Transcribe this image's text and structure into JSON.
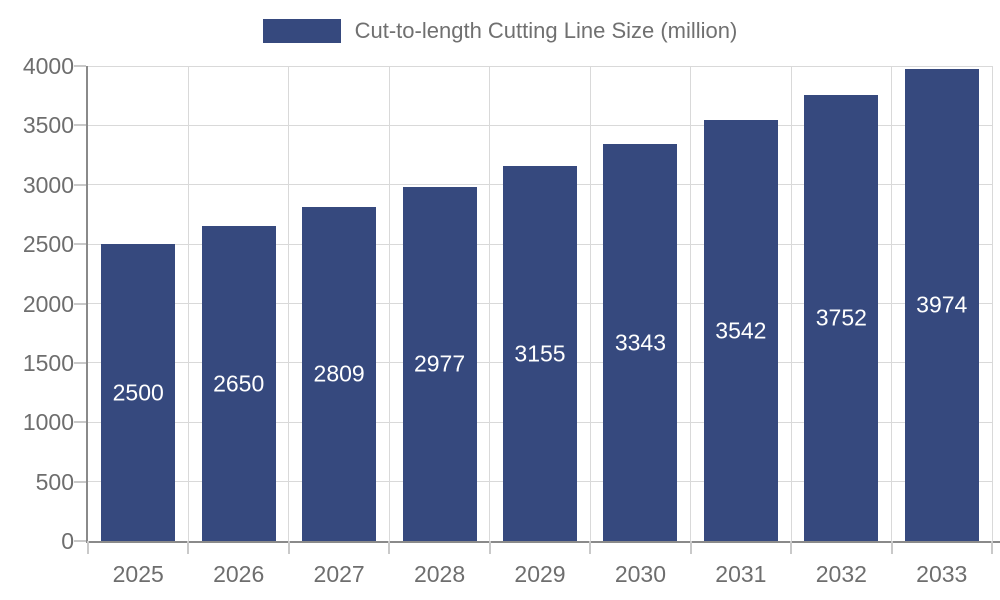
{
  "legend": {
    "label": "Cut-to-length Cutting Line Size (million)"
  },
  "chart_data": {
    "type": "bar",
    "title": "",
    "xlabel": "",
    "ylabel": "",
    "legend_entries": [
      "Cut-to-length Cutting Line Size (million)"
    ],
    "legend_position": "top-center",
    "categories": [
      "2025",
      "2026",
      "2027",
      "2028",
      "2029",
      "2030",
      "2031",
      "2032",
      "2033"
    ],
    "series": [
      {
        "name": "Cut-to-length Cutting Line Size (million)",
        "values": [
          2500,
          2650,
          2809,
          2977,
          3155,
          3343,
          3542,
          3752,
          3974
        ]
      }
    ],
    "bar_value_labels": [
      "2500",
      "2650",
      "2809",
      "2977",
      "3155",
      "3343",
      "3542",
      "3752",
      "3974"
    ],
    "ylim": [
      0,
      4000
    ],
    "yticks": [
      0,
      500,
      1000,
      1500,
      2000,
      2500,
      3000,
      3500,
      4000
    ],
    "grid": true,
    "colors": {
      "bar": "#36497E",
      "bar_label": "#ffffff",
      "axis_line": "#8a8a8a",
      "tick": "#c9c9c9",
      "gridline": "#d9d9d9",
      "axis_text": "#6e6e6e",
      "legend_text": "#707070"
    }
  }
}
